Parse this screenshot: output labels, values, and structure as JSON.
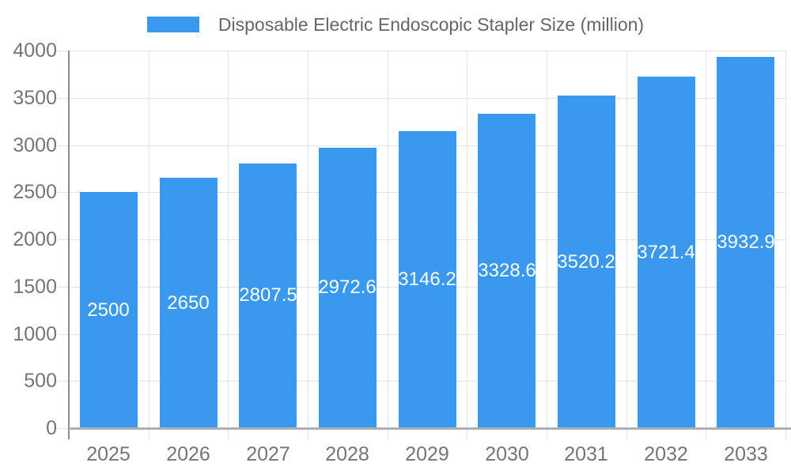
{
  "legend": {
    "swatch_icon": "legend-color-swatch"
  },
  "chart_data": {
    "type": "bar",
    "title": "Disposable Electric Endoscopic Stapler Size (million)",
    "categories": [
      "2025",
      "2026",
      "2027",
      "2028",
      "2029",
      "2030",
      "2031",
      "2032",
      "2033"
    ],
    "values": [
      2500,
      2650,
      2807.5,
      2972.6,
      3146.2,
      3328.6,
      3520.2,
      3721.4,
      3932.9
    ],
    "value_labels": [
      "2500",
      "2650",
      "2807.5",
      "2972.6",
      "3146.2",
      "3328.6",
      "3520.2",
      "3721.4",
      "3932.9"
    ],
    "xlabel": "",
    "ylabel": "",
    "ylim": [
      0,
      4000
    ],
    "yticks": [
      0,
      500,
      1000,
      1500,
      2000,
      2500,
      3000,
      3500,
      4000
    ],
    "grid": true,
    "legend_position": "top",
    "bar_color": "#3a99ee",
    "value_label_color": "#ffffff",
    "axis_label_color": "#757575",
    "legend_text_color": "#666666",
    "gridline_color": "#e3e3e3",
    "y_axis_line_color": "#8c8c8c",
    "x_axis_line_color": "#b0b0b0",
    "background_color": "#ffffff"
  }
}
